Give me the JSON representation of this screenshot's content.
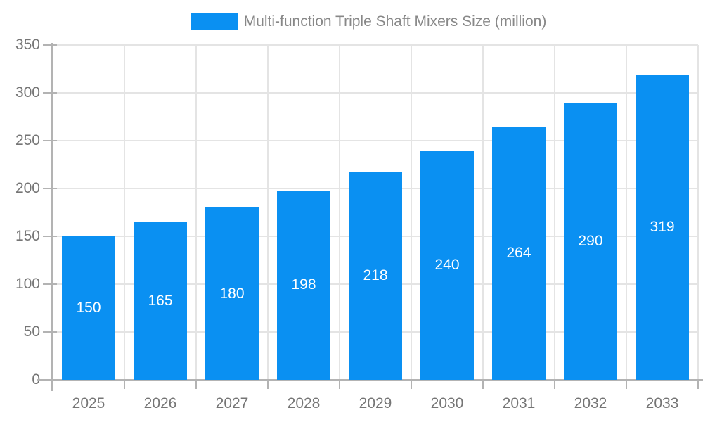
{
  "chart_data": {
    "type": "bar",
    "title": "Multi-function Triple Shaft Mixers Size (million)",
    "categories": [
      "2025",
      "2026",
      "2027",
      "2028",
      "2029",
      "2030",
      "2031",
      "2032",
      "2033"
    ],
    "series": [
      {
        "name": "Multi-function Triple Shaft Mixers Size (million)",
        "values": [
          150,
          165,
          180,
          198,
          218,
          240,
          264,
          290,
          319
        ]
      }
    ],
    "xlabel": "",
    "ylabel": "",
    "ylim": [
      0,
      350
    ],
    "y_ticks": [
      0,
      50,
      100,
      150,
      200,
      250,
      300,
      350
    ],
    "grid": true,
    "legend_position": "top-center",
    "value_label_position": "inside-center",
    "style": {
      "bar_color": "#0a90f2",
      "axis_color": "#b3b3b3",
      "grid_color": "#e4e4e4",
      "tick_label_color": "#757575",
      "value_label_color": "#ffffff",
      "legend_text_color": "#888888",
      "background": "#ffffff"
    }
  }
}
